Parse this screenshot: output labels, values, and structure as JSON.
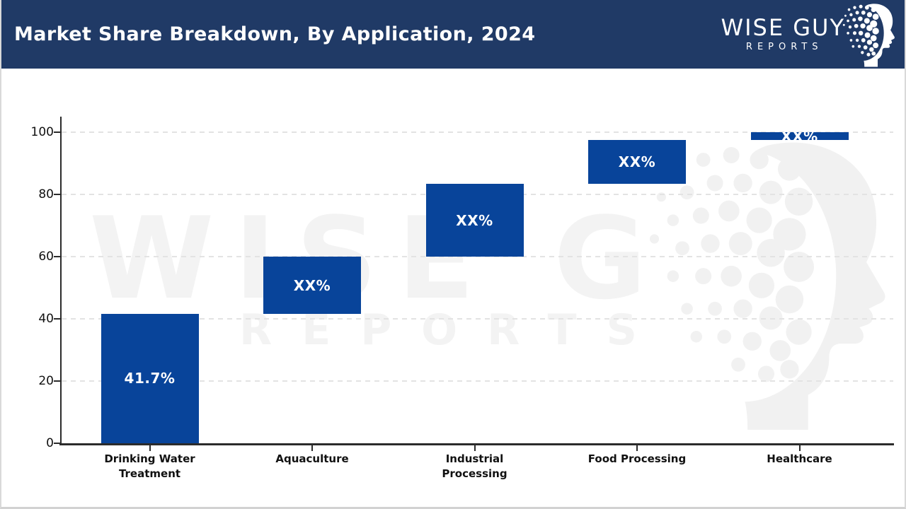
{
  "header": {
    "title": "Market Share Breakdown, By Application, 2024",
    "bg_color": "#203a66",
    "logo": {
      "wordmark": "WISE GUY",
      "subtext": "REPORTS"
    }
  },
  "watermark": {
    "wordmark": "WISE GUY",
    "subtext": "REPORTS"
  },
  "chart_data": {
    "type": "bar",
    "subtype": "waterfall",
    "title": "Market Share Breakdown, By Application, 2024",
    "xlabel": "",
    "ylabel": "",
    "ylim": [
      0,
      105
    ],
    "yticks": [
      0,
      20,
      40,
      60,
      80,
      100
    ],
    "grid": "horizontal-dashed",
    "legend": "none",
    "bar_color": "#08449a",
    "bar_label_color": "#ffffff",
    "categories": [
      "Drinking Water\nTreatment",
      "Aquaculture",
      "Industrial\nProcessing",
      "Food Processing",
      "Healthcare"
    ],
    "segments": [
      {
        "category": "Drinking Water Treatment",
        "start": 0,
        "end": 41.7,
        "label": "41.7%"
      },
      {
        "category": "Aquaculture",
        "start": 41.7,
        "end": 60.0,
        "label": "XX%"
      },
      {
        "category": "Industrial Processing",
        "start": 60.0,
        "end": 83.4,
        "label": "XX%"
      },
      {
        "category": "Food Processing",
        "start": 83.4,
        "end": 97.4,
        "label": "XX%"
      },
      {
        "category": "Healthcare",
        "start": 97.4,
        "end": 100.0,
        "label": "XX%"
      }
    ]
  }
}
